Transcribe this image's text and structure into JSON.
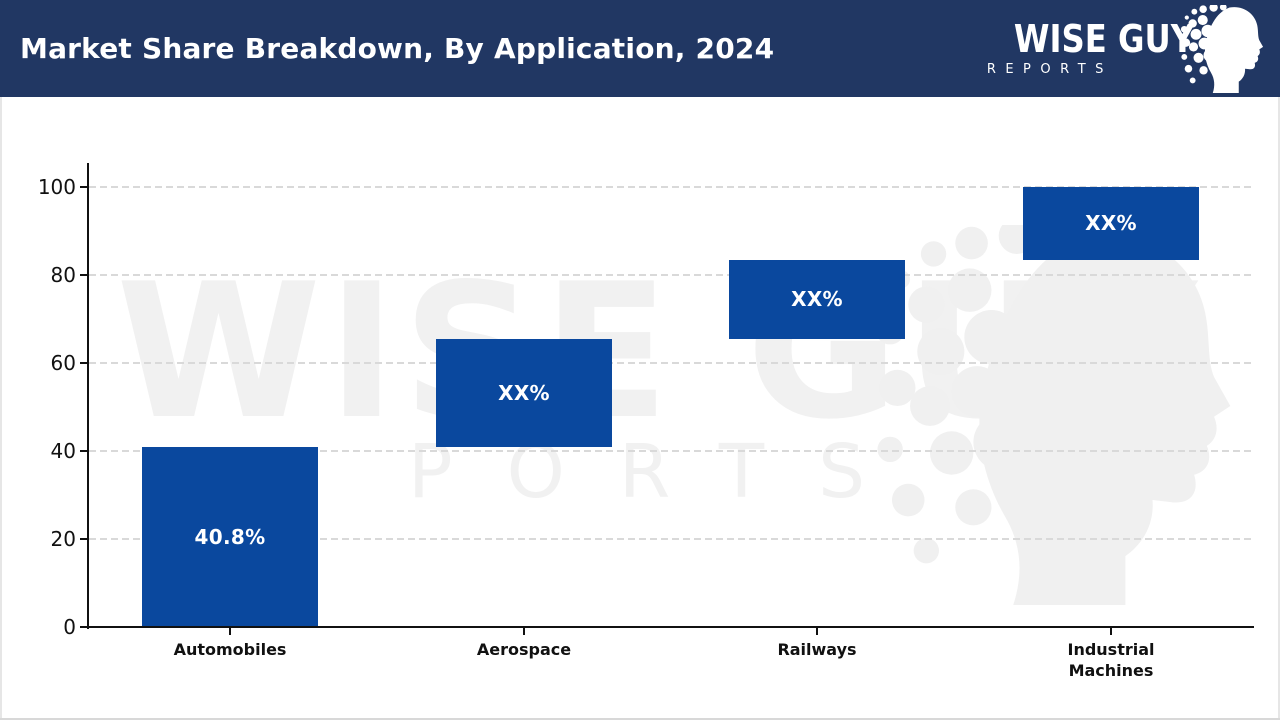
{
  "header": {
    "title": "Market Share Breakdown, By Application, 2024",
    "logo": {
      "line1": "WISE GUY",
      "line2": "REPORTS"
    }
  },
  "watermark": {
    "line1": "WISE GUY",
    "line2": "PORTS"
  },
  "chart_data": {
    "type": "bar",
    "subtype": "floating-waterfall-segments",
    "title": "Market Share Breakdown, By Application, 2024",
    "categories": [
      "Automobiles",
      "Aerospace",
      "Railways",
      "Industrial Machines"
    ],
    "segments": [
      {
        "category": "Automobiles",
        "start": 0,
        "end": 40.8,
        "label": "40.8%"
      },
      {
        "category": "Aerospace",
        "start": 40.8,
        "end": 65.5,
        "label": "XX%"
      },
      {
        "category": "Railways",
        "start": 65.5,
        "end": 83.5,
        "label": "XX%"
      },
      {
        "category": "Industrial Machines",
        "start": 83.5,
        "end": 100,
        "label": "XX%"
      }
    ],
    "ylim": [
      0,
      100
    ],
    "yticks": [
      0,
      20,
      40,
      60,
      80,
      100
    ],
    "xlabel": "",
    "ylabel": "",
    "grid": "horizontal-dashed",
    "legend": "none",
    "bar_color": "#0a489e",
    "bar_label_color": "#ffffff",
    "axis_color": "#111111"
  }
}
